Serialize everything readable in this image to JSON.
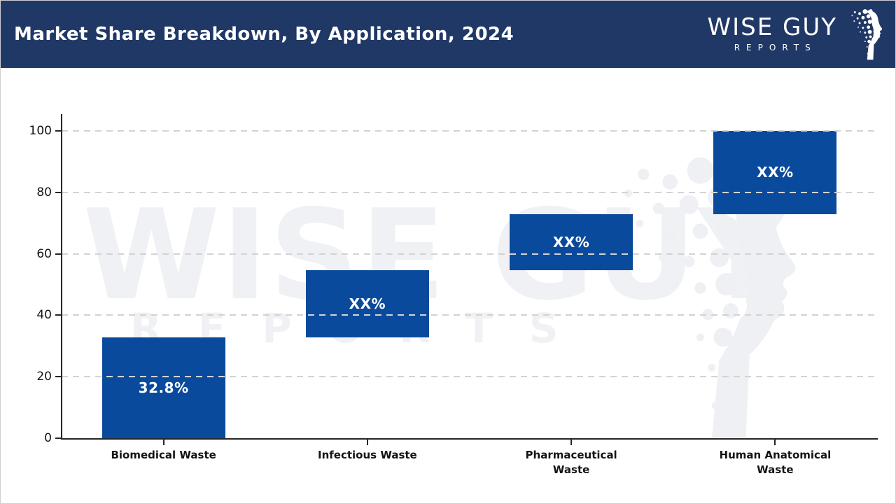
{
  "header": {
    "title": "Market Share Breakdown, By Application, 2024",
    "logo_primary": "WISE GUY",
    "logo_secondary": "REPORTS"
  },
  "watermark": {
    "primary": "WISE GUY",
    "secondary": "REPORTS"
  },
  "chart_data": {
    "type": "bar",
    "variant": "waterfall",
    "title": "Market Share Breakdown, By Application, 2024",
    "categories": [
      "Biomedical Waste",
      "Infectious Waste",
      "Pharmaceutical Waste",
      "Human Anatomical Waste"
    ],
    "category_label_lines": [
      [
        "Biomedical Waste"
      ],
      [
        "Infectious Waste"
      ],
      [
        "Pharmaceutical",
        "Waste"
      ],
      [
        "Human Anatomical",
        "Waste"
      ]
    ],
    "segments": [
      {
        "category": "Biomedical Waste",
        "start": 0,
        "end": 32.8,
        "value": 32.8,
        "label": "32.8%"
      },
      {
        "category": "Infectious Waste",
        "start": 32.8,
        "end": 54.6,
        "value": 21.8,
        "label": "XX%"
      },
      {
        "category": "Pharmaceutical Waste",
        "start": 54.6,
        "end": 72.9,
        "value": 18.3,
        "label": "XX%"
      },
      {
        "category": "Human Anatomical Waste",
        "start": 72.9,
        "end": 100,
        "value": 27.1,
        "label": "XX%"
      }
    ],
    "xlabel": "",
    "ylabel": "",
    "y_ticks": [
      0,
      20,
      40,
      60,
      80,
      100
    ],
    "ylim": [
      0,
      105
    ],
    "legend": null,
    "grid": {
      "horizontal": true,
      "style": "dashed",
      "drawn_over_bars": true
    },
    "colors": {
      "bar": "#0a4a9c",
      "header_bg": "#203866",
      "axis": "#262626",
      "gridline": "#d3d3d3",
      "bar_label": "#ffffff",
      "watermark": "#f0f1f4"
    }
  }
}
